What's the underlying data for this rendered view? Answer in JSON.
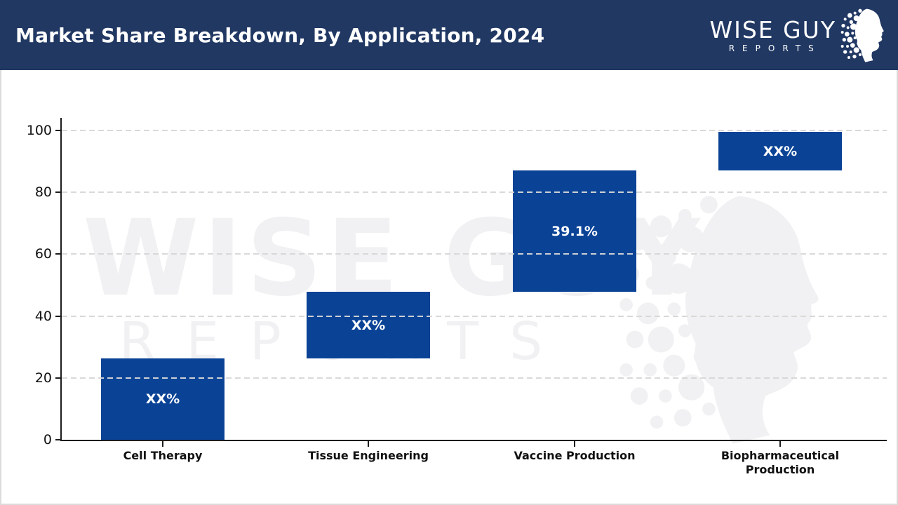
{
  "header": {
    "title": "Market Share Breakdown, By Application, 2024",
    "logo": {
      "brand": "WISE GUY",
      "sub": "REPORTS"
    }
  },
  "watermark": {
    "brand": "WISE GUY",
    "sub": "REPORTS"
  },
  "colors": {
    "header_bg": "#213863",
    "bar": "#0a4396",
    "axis": "#1c1c1c",
    "grid": "#d9d9d9",
    "tick_text": "#111111",
    "bar_label_text": "#ffffff",
    "watermark": "#f1f1f3"
  },
  "chart_data": {
    "type": "bar",
    "subtype": "floating-waterfall",
    "title": "Market Share Breakdown, By Application, 2024",
    "ylim": [
      0,
      100
    ],
    "yticks": [
      0,
      20,
      40,
      60,
      80,
      100
    ],
    "grid": "dashed-horizontal",
    "legend": "none",
    "categories": [
      "Cell Therapy",
      "Tissue Engineering",
      "Vaccine Production",
      "Biopharmaceutical Production"
    ],
    "segments": [
      {
        "category": "Cell Therapy",
        "start": 0,
        "end": 26.2,
        "label": "XX%"
      },
      {
        "category": "Tissue Engineering",
        "start": 26.2,
        "end": 47.8,
        "label": "XX%"
      },
      {
        "category": "Vaccine Production",
        "start": 47.9,
        "end": 87.0,
        "label": "39.1%",
        "value": 39.1
      },
      {
        "category": "Biopharmaceutical Production",
        "start": 87.0,
        "end": 99.6,
        "label": "XX%"
      }
    ]
  }
}
